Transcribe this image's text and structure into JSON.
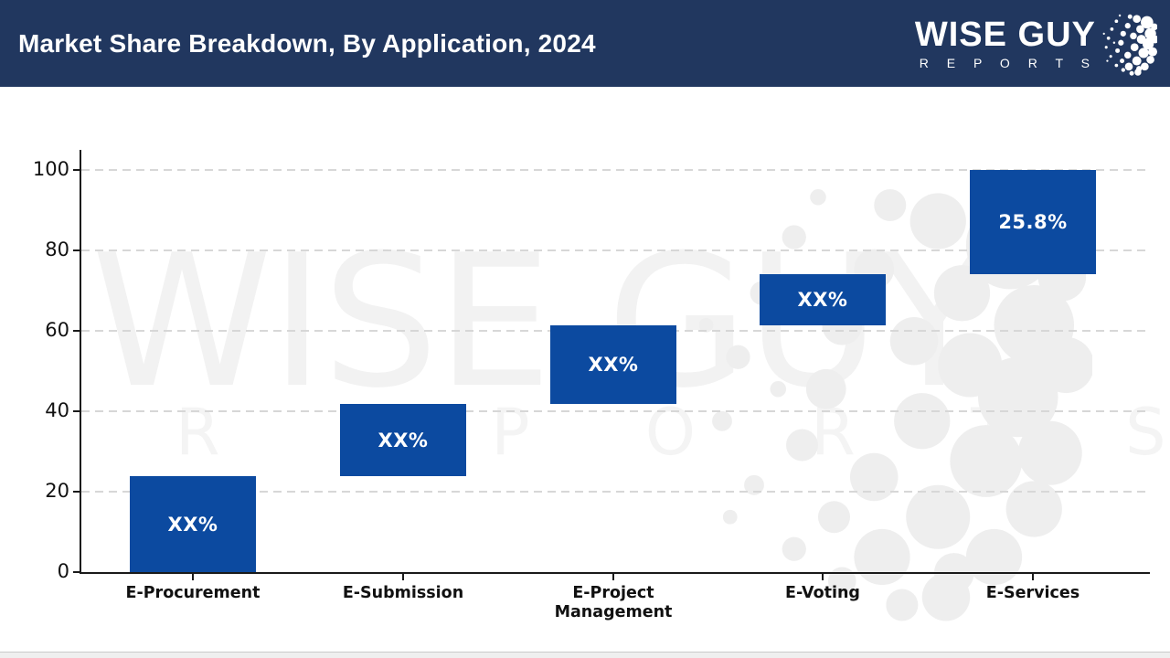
{
  "header": {
    "title": "Market Share Breakdown, By Application, 2024",
    "logo_line1": "WISE GUY",
    "logo_line2": "R E P O R T S"
  },
  "watermark": {
    "line1": "WISE GUY",
    "line2": "R E P O R T S"
  },
  "chart_data": {
    "type": "bar",
    "variant": "waterfall",
    "title": "Market Share Breakdown, By Application, 2024",
    "xlabel": "",
    "ylabel": "",
    "ylim": [
      0,
      105
    ],
    "yticks": [
      0,
      20,
      40,
      60,
      80,
      100
    ],
    "grid": "horizontal-dashed",
    "legend": "none",
    "bar_color": "#0c4aa0",
    "value_label_color": "#ffffff",
    "categories": [
      "E-Procurement",
      "E-Submission",
      "E-Project Management",
      "E-Voting",
      "E-Services"
    ],
    "category_lines": [
      [
        "E-Procurement"
      ],
      [
        "E-Submission"
      ],
      [
        "E-Project",
        "Management"
      ],
      [
        "E-Voting"
      ],
      [
        "E-Services"
      ]
    ],
    "segments": [
      {
        "category": "E-Procurement",
        "start": 0,
        "end": 23.8,
        "value_label": "XX%"
      },
      {
        "category": "E-Submission",
        "start": 23.8,
        "end": 41.8,
        "value_label": "XX%"
      },
      {
        "category": "E-Project Management",
        "start": 41.8,
        "end": 61.4,
        "value_label": "XX%"
      },
      {
        "category": "E-Voting",
        "start": 61.4,
        "end": 74.2,
        "value_label": "XX%"
      },
      {
        "category": "E-Services",
        "start": 74.2,
        "end": 100,
        "value_label": "25.8%"
      }
    ]
  }
}
